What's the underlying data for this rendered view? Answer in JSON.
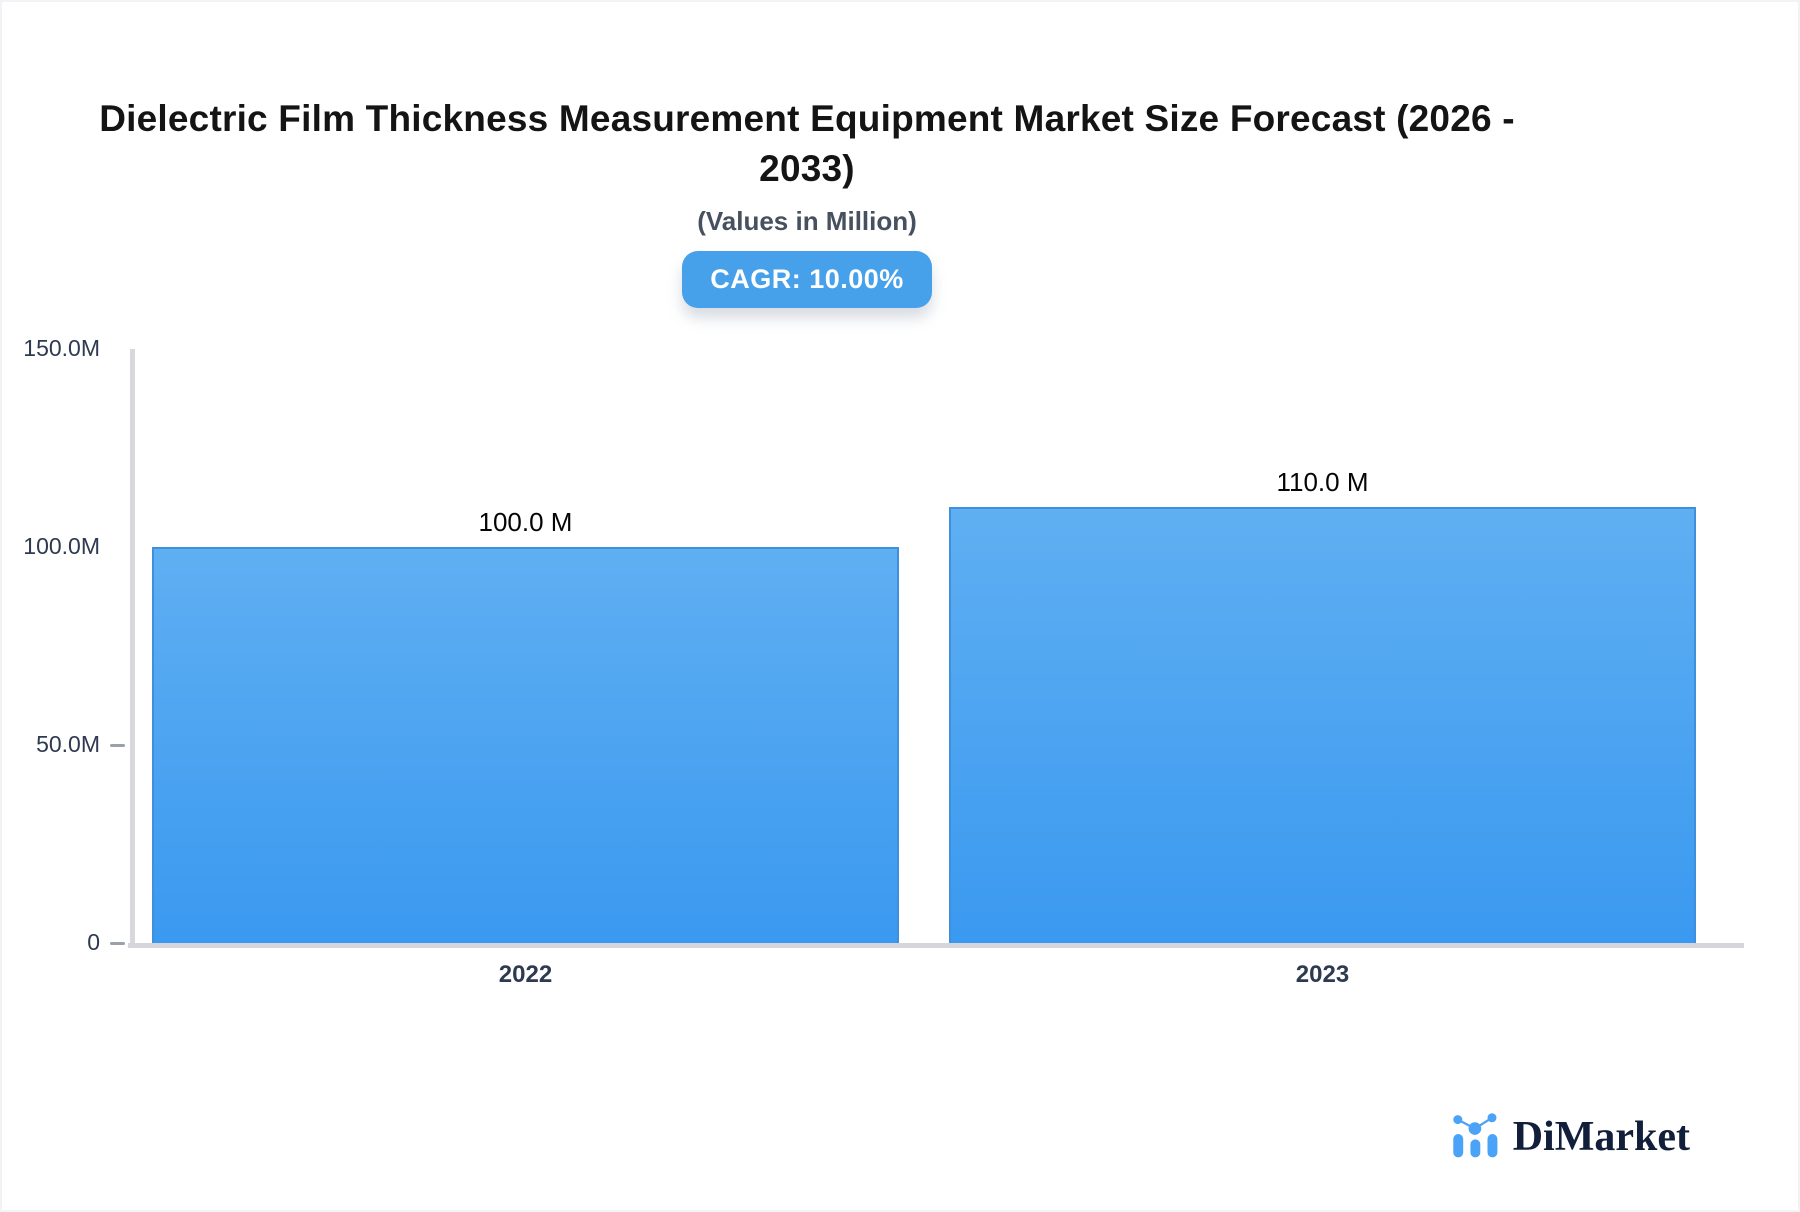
{
  "header": {
    "title_lines": [
      "Dielectric Film Thickness Measurement Equipment Market Size Forecast (2026 -",
      "2033)"
    ],
    "subtitle": "(Values in Million)",
    "cagr_badge": "CAGR: 10.00%"
  },
  "chart_data": {
    "type": "bar",
    "categories": [
      "2022",
      "2023"
    ],
    "values": [
      100.0,
      110.0
    ],
    "value_labels": [
      "100.0 M",
      "110.0 M"
    ],
    "ylim": [
      0,
      150
    ],
    "yticks": [
      {
        "value": 150,
        "label": "150.0M",
        "dash": false
      },
      {
        "value": 100,
        "label": "100.0M",
        "dash": false
      },
      {
        "value": 50,
        "label": "50.0M",
        "dash": true
      },
      {
        "value": 0,
        "label": "0",
        "dash": true
      }
    ],
    "grid": false,
    "legend": "none",
    "bar_color_top": "#5faff2",
    "bar_color_bottom": "#3a99f0",
    "bar_border_color": "#3e90de",
    "axis_color": "#d6d8dd"
  },
  "colors": {
    "badge_background": "#47a0ea",
    "logo_accent": "#4aa3f7",
    "logo_text_color": "#121f3a"
  },
  "footer": {
    "logo_text": "DiMarket",
    "logo_icon": "bar-line-chart-icon"
  }
}
